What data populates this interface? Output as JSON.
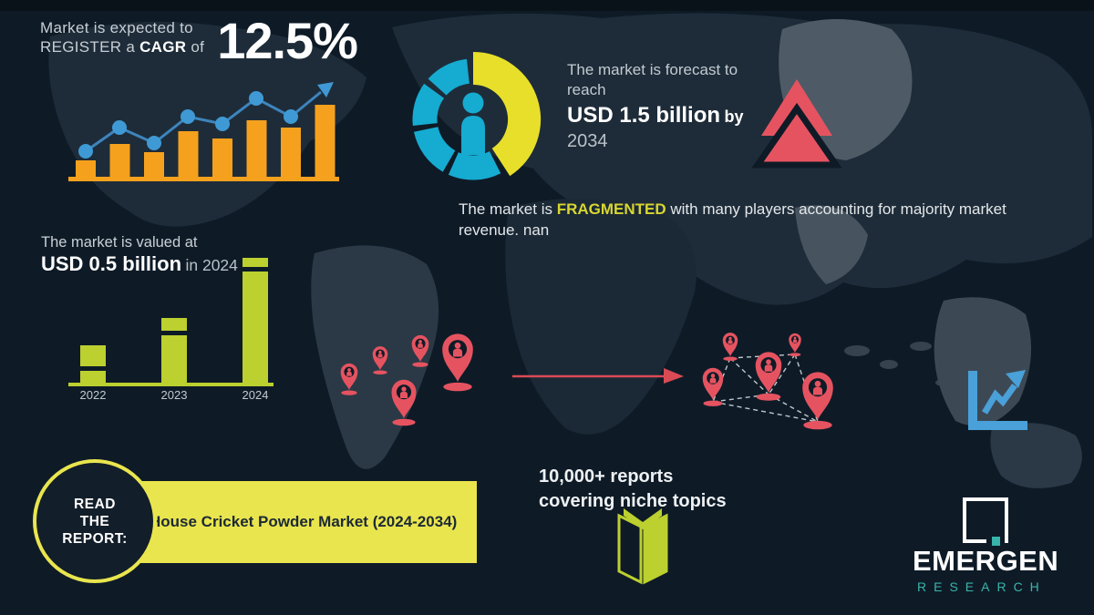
{
  "colors": {
    "background": "#0e1b27",
    "top_strip": "#091219",
    "orange": "#f5a11d",
    "line_blue": "#3d84bd",
    "dot_blue": "#3f99d4",
    "green": "#bcd02f",
    "bar_stripe": "#0d1b27",
    "red": "#e65360",
    "flow_red": "#d94a55",
    "donut_yellow": "#e8df2b",
    "donut_cyan": "#16abd1",
    "highlight_yellow": "#d8d630",
    "banner_yellow": "#e9e54e",
    "teal": "#3ab3aa",
    "icon_blue": "#4aa0d8",
    "text_gray": "#c7ced4",
    "text_white": "#ffffff"
  },
  "cagr_block": {
    "line1": "Market is expected to",
    "line2_pre": "REGISTER a ",
    "line2_bold": "CAGR",
    "line2_post": " of",
    "value": "12.5%"
  },
  "forecast_block": {
    "line1": "The market is forecast to",
    "line2": "reach",
    "value": "USD 1.5 billion",
    "by_word": "by",
    "year": "2034"
  },
  "fragmented_block": {
    "pre": "The market is ",
    "highlight": "FRAGMENTED",
    "post": " with many players accounting for majority market revenue. nan"
  },
  "valuation_block": {
    "line1": "The market is valued at",
    "value": "USD 0.5 billion",
    "suffix": "in 2024"
  },
  "reports_block": {
    "line1": "10,000+ reports",
    "line2": "covering niche topics"
  },
  "cta": {
    "circle_line1": "READ",
    "circle_line2": "THE",
    "circle_line3": "REPORT:",
    "banner_text": "House Cricket Powder Market (2024-2034)"
  },
  "logo": {
    "brand": "EMERGEN",
    "sub_brand": "RESEARCH"
  },
  "chart_data": [
    {
      "type": "bar",
      "name": "cagr-trend-chart",
      "title": "Market expected to register a CAGR of 12.5%",
      "series": [
        {
          "name": "market-size-trend",
          "values": [
            18,
            36,
            27,
            50,
            42,
            62,
            54,
            79
          ]
        }
      ],
      "line_points": [
        [
          94,
          166
        ],
        [
          131,
          140
        ],
        [
          169,
          157
        ],
        [
          206,
          128
        ],
        [
          244,
          136
        ],
        [
          281,
          108
        ],
        [
          319,
          128
        ],
        [
          352,
          101
        ]
      ],
      "xlabel": "",
      "ylabel": "",
      "note": "decorative rising bar chart with zigzag trend line and arrow, no axis labels"
    },
    {
      "type": "bar",
      "name": "market-valuation-chart",
      "categories": [
        "2022",
        "2023",
        "2024"
      ],
      "values": [
        0.15,
        0.26,
        0.5
      ],
      "ylabel": "USD billion",
      "annotation": "The market is valued at USD 0.5 billion in 2024",
      "note": "values for 2022/2023 estimated from bar heights relative to 2024 = 0.5"
    },
    {
      "type": "pie",
      "name": "market-share-donut",
      "slices": [
        {
          "label": "leading-share",
          "value": 40,
          "color": "#e8df2b"
        },
        {
          "label": "other-players",
          "value": 60,
          "color": "#16abd1"
        }
      ],
      "note": "cyan portion split into 4 segments with gaps; person pictogram in center"
    }
  ]
}
